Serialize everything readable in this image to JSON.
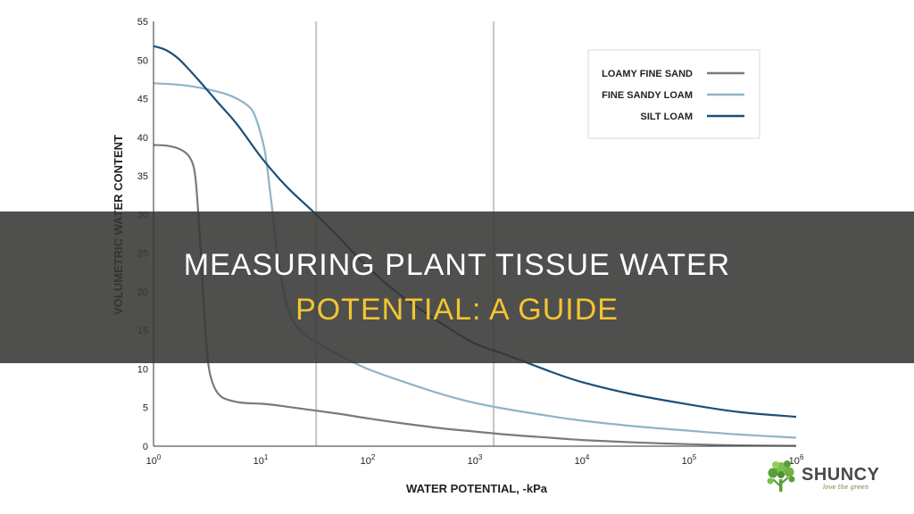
{
  "chart_data": {
    "type": "line",
    "xscale": "log",
    "xlim": [
      1,
      1000000
    ],
    "ylim": [
      0,
      55
    ],
    "xlabel": "WATER POTENTIAL, -kPa",
    "ylabel": "VOLUMETRIC WATER CONTENT",
    "x_ticks": [
      {
        "base": "10",
        "exp": "0",
        "value": 1
      },
      {
        "base": "10",
        "exp": "1",
        "value": 10
      },
      {
        "base": "10",
        "exp": "2",
        "value": 100
      },
      {
        "base": "10",
        "exp": "3",
        "value": 1000
      },
      {
        "base": "10",
        "exp": "4",
        "value": 10000
      },
      {
        "base": "10",
        "exp": "5",
        "value": 100000
      },
      {
        "base": "10",
        "exp": "6",
        "value": 1000000
      }
    ],
    "y_ticks": [
      {
        "label": "0",
        "value": 0
      },
      {
        "label": "5",
        "value": 5
      },
      {
        "label": "10",
        "value": 10
      },
      {
        "label": "15",
        "value": 15
      },
      {
        "label": "20",
        "value": 20
      },
      {
        "label": "25",
        "value": 25
      },
      {
        "label": "30",
        "value": 30
      },
      {
        "label": "35",
        "value": 35
      },
      {
        "label": "40",
        "value": 40
      },
      {
        "label": "45",
        "value": 45
      },
      {
        "label": "50",
        "value": 50
      },
      {
        "label": "55",
        "value": 55
      }
    ],
    "reference_lines_x": [
      33,
      1500
    ],
    "series": [
      {
        "name": "LOAMY FINE SAND",
        "color": "#7a7a7a",
        "points": [
          [
            1,
            39
          ],
          [
            1.35,
            38.9
          ],
          [
            1.8,
            38.4
          ],
          [
            2.2,
            37.3
          ],
          [
            2.45,
            35
          ],
          [
            2.65,
            29
          ],
          [
            2.85,
            22
          ],
          [
            3.05,
            15
          ],
          [
            3.3,
            10
          ],
          [
            3.7,
            7.6
          ],
          [
            4.3,
            6.4
          ],
          [
            5.3,
            5.9
          ],
          [
            7,
            5.6
          ],
          [
            10,
            5.5
          ],
          [
            14,
            5.3
          ],
          [
            20,
            5
          ],
          [
            33,
            4.6
          ],
          [
            60,
            4.1
          ],
          [
            100,
            3.6
          ],
          [
            200,
            3
          ],
          [
            500,
            2.3
          ],
          [
            1000,
            1.9
          ],
          [
            2000,
            1.5
          ],
          [
            5000,
            1.1
          ],
          [
            10000,
            0.8
          ],
          [
            30000,
            0.5
          ],
          [
            100000,
            0.25
          ],
          [
            300000,
            0.1
          ],
          [
            1000000,
            0.05
          ]
        ]
      },
      {
        "name": "FINE SANDY LOAM",
        "color": "#8fb3c8",
        "points": [
          [
            1,
            47
          ],
          [
            2,
            46.7
          ],
          [
            4,
            45.9
          ],
          [
            6,
            45
          ],
          [
            8,
            43.8
          ],
          [
            9,
            42.5
          ],
          [
            10,
            40.5
          ],
          [
            11,
            38
          ],
          [
            12,
            34
          ],
          [
            13,
            30
          ],
          [
            14,
            26
          ],
          [
            15.5,
            22
          ],
          [
            17,
            19
          ],
          [
            20,
            16.3
          ],
          [
            25,
            14.6
          ],
          [
            33,
            13.5
          ],
          [
            45,
            12.4
          ],
          [
            70,
            11
          ],
          [
            100,
            10
          ],
          [
            200,
            8.5
          ],
          [
            500,
            6.7
          ],
          [
            1000,
            5.6
          ],
          [
            2000,
            4.8
          ],
          [
            5000,
            3.9
          ],
          [
            10000,
            3.3
          ],
          [
            30000,
            2.6
          ],
          [
            100000,
            2
          ],
          [
            300000,
            1.5
          ],
          [
            1000000,
            1.1
          ]
        ]
      },
      {
        "name": "SILT LOAM",
        "color": "#1b4f7a",
        "points": [
          [
            1,
            51.8
          ],
          [
            1.3,
            51.3
          ],
          [
            1.7,
            50.2
          ],
          [
            2.2,
            48.6
          ],
          [
            3,
            46.5
          ],
          [
            4,
            44.5
          ],
          [
            6,
            41.7
          ],
          [
            10,
            37.5
          ],
          [
            15,
            34.6
          ],
          [
            20,
            32.8
          ],
          [
            33,
            30
          ],
          [
            50,
            27.5
          ],
          [
            100,
            23.2
          ],
          [
            200,
            19.6
          ],
          [
            500,
            15.8
          ],
          [
            1000,
            13.3
          ],
          [
            2000,
            11.8
          ],
          [
            5000,
            9.7
          ],
          [
            10000,
            8.3
          ],
          [
            30000,
            6.7
          ],
          [
            100000,
            5.4
          ],
          [
            300000,
            4.4
          ],
          [
            1000000,
            3.8
          ]
        ]
      }
    ],
    "legend": {
      "position": "top-right",
      "entries": [
        "LOAMY FINE SAND",
        "FINE SANDY LOAM",
        "SILT LOAM"
      ]
    }
  },
  "banner": {
    "line1": "MEASURING PLANT TISSUE WATER",
    "line2": "POTENTIAL: A GUIDE"
  },
  "logo": {
    "name": "SHUNCY",
    "tagline": "love the green",
    "icon": "tree-icon",
    "color": "#5a9e3a"
  }
}
